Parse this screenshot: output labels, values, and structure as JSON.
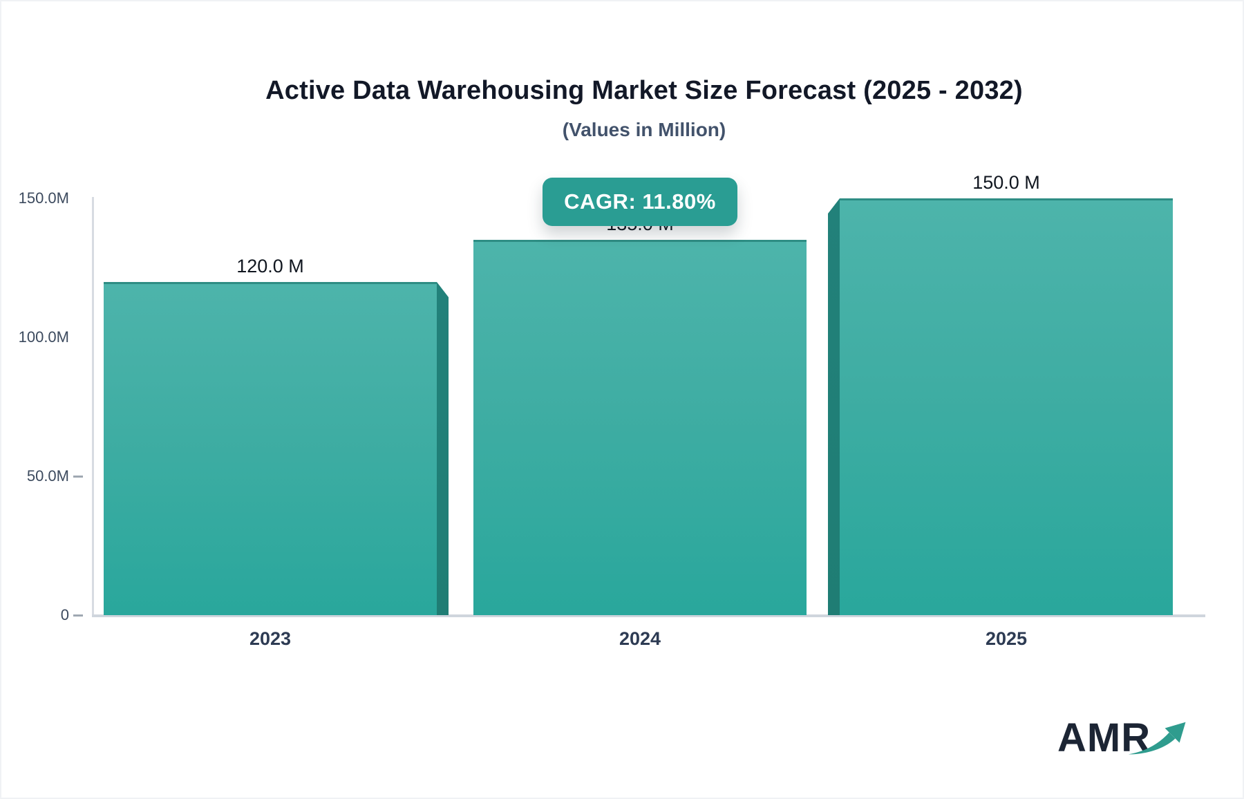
{
  "title": "Active Data Warehousing Market Size Forecast (2025 - 2032)",
  "subtitle": "(Values in Million)",
  "cagr_badge_label": "CAGR: 11.80%",
  "logo": {
    "text": "AMR",
    "arrow_icon": "up-right-swoosh-arrow"
  },
  "colors": {
    "bar_top": "#4db4ab",
    "bar_bottom": "#29a79c",
    "bar_side": "#1f7d74",
    "bar_top_border": "#2e8d84",
    "badge": "#2a9d93",
    "axis": "#d7dbe2",
    "title_text": "#121827",
    "subtitle_text": "#42526b",
    "logo_text": "#1c2534",
    "logo_arrow": "#2f9c8e"
  },
  "chart_data": {
    "type": "bar",
    "title": "Active Data Warehousing Market Size Forecast (2025 - 2032)",
    "subtitle": "(Values in Million)",
    "categories": [
      "2023",
      "2024",
      "2025"
    ],
    "values": [
      120,
      135,
      150
    ],
    "bar_labels": [
      "120.0 M",
      "135.0 M",
      "150.0 M"
    ],
    "unit": "Million (M)",
    "cagr": "11.80%",
    "xlabel": "",
    "ylabel": "",
    "ylim": [
      0,
      150
    ],
    "ytick_labels": [
      "150.0M",
      "100.0M",
      "50.0M",
      "0"
    ],
    "ytick_values": [
      150,
      100,
      50,
      0
    ],
    "grid": false,
    "legend": "none",
    "bar_color": "teal-gradient-3d"
  }
}
